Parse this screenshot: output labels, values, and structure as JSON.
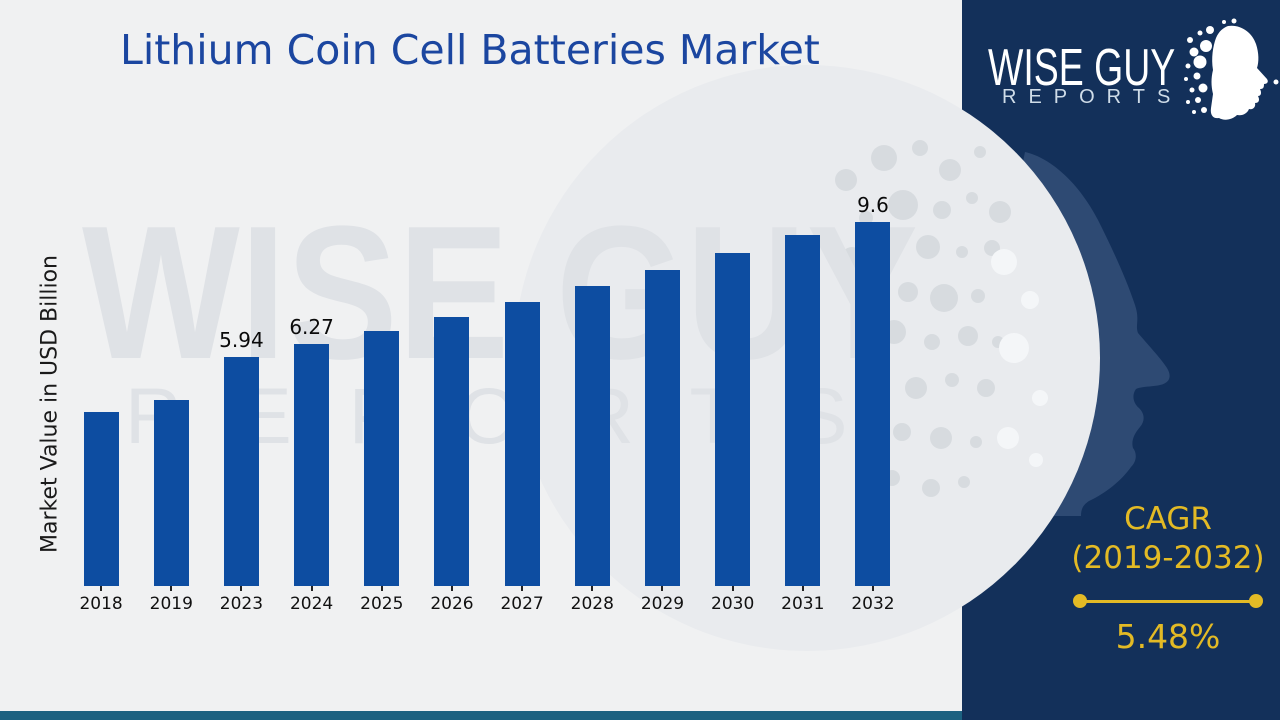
{
  "title": "Lithium Coin Cell Batteries Market",
  "chart_data": {
    "type": "bar",
    "title": "Lithium Coin Cell Batteries Market",
    "xlabel": "",
    "ylabel": "Market Value in USD Billion",
    "categories": [
      "2018",
      "2019",
      "2023",
      "2024",
      "2025",
      "2026",
      "2027",
      "2028",
      "2029",
      "2030",
      "2031",
      "2032"
    ],
    "values": [
      4.5,
      4.81,
      5.94,
      6.27,
      6.61,
      6.97,
      7.35,
      7.76,
      8.18,
      8.63,
      9.1,
      9.6
    ],
    "data_labels": [
      "",
      "",
      "5.94",
      "6.27",
      "",
      "",
      "",
      "",
      "",
      "",
      "",
      "9.6"
    ],
    "ylim": [
      0,
      10
    ],
    "grid": false,
    "legend": null,
    "bar_color": "#0d4da1"
  },
  "brand": {
    "logo_line1": "WISE GUY",
    "logo_line2": "REPORTS",
    "watermark_line1": "WISE GUY",
    "watermark_line2": "REPORTS"
  },
  "cagr": {
    "heading": "CAGR",
    "range": "(2019-2032)",
    "value": "5.48%"
  },
  "colors": {
    "background": "#f0f1f2",
    "bar": "#0d4da1",
    "title_text": "#1b46a0",
    "panel_navy": "#13305a",
    "footer_teal": "#1c6180",
    "accent_gold": "#e3ba25",
    "watermark_gray": "#dfe2e6",
    "face_silhouette": "#2e4a73"
  }
}
